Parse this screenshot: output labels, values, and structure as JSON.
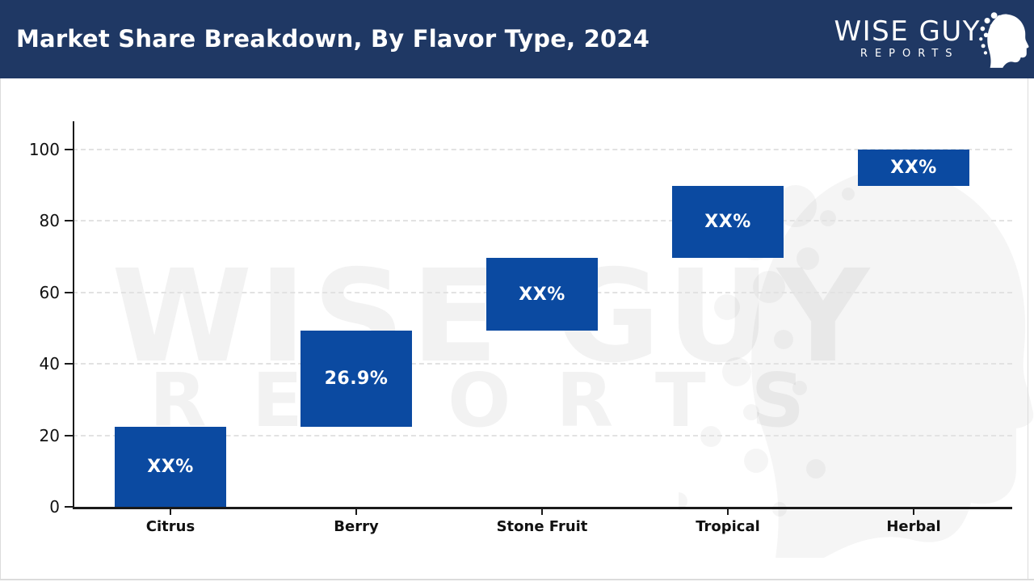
{
  "header": {
    "title": "Market Share Breakdown, By Flavor Type, 2024",
    "bg_color": "#1f3864",
    "brand_line1": "WISE GUY",
    "brand_line2": "REPORTS"
  },
  "watermark": {
    "line1": "WISE GUY",
    "line2": "REPORTS"
  },
  "chart_data": {
    "type": "bar",
    "subtype": "waterfall",
    "title": "Market Share Breakdown, By Flavor Type, 2024",
    "categories": [
      "Citrus",
      "Berry",
      "Stone Fruit",
      "Tropical",
      "Herbal"
    ],
    "bars": [
      {
        "category": "Citrus",
        "start": 0,
        "end": 22.4,
        "value": 22.4,
        "label": "XX%"
      },
      {
        "category": "Berry",
        "start": 22.4,
        "end": 49.3,
        "value": 26.9,
        "label": "26.9%"
      },
      {
        "category": "Stone Fruit",
        "start": 49.3,
        "end": 69.6,
        "value": 20.3,
        "label": "XX%"
      },
      {
        "category": "Tropical",
        "start": 69.6,
        "end": 89.9,
        "value": 20.3,
        "label": "XX%"
      },
      {
        "category": "Herbal",
        "start": 89.9,
        "end": 100,
        "value": 10.1,
        "label": "XX%"
      }
    ],
    "xlabel": "",
    "ylabel": "",
    "ylim": [
      0,
      100
    ],
    "yticks": [
      0,
      20,
      40,
      60,
      80,
      100
    ],
    "grid": "horizontal-dashed",
    "legend": "none",
    "bar_color": "#0b4aa1",
    "bar_label_color": "#ffffff",
    "axis_color": "#1a1a1a"
  }
}
